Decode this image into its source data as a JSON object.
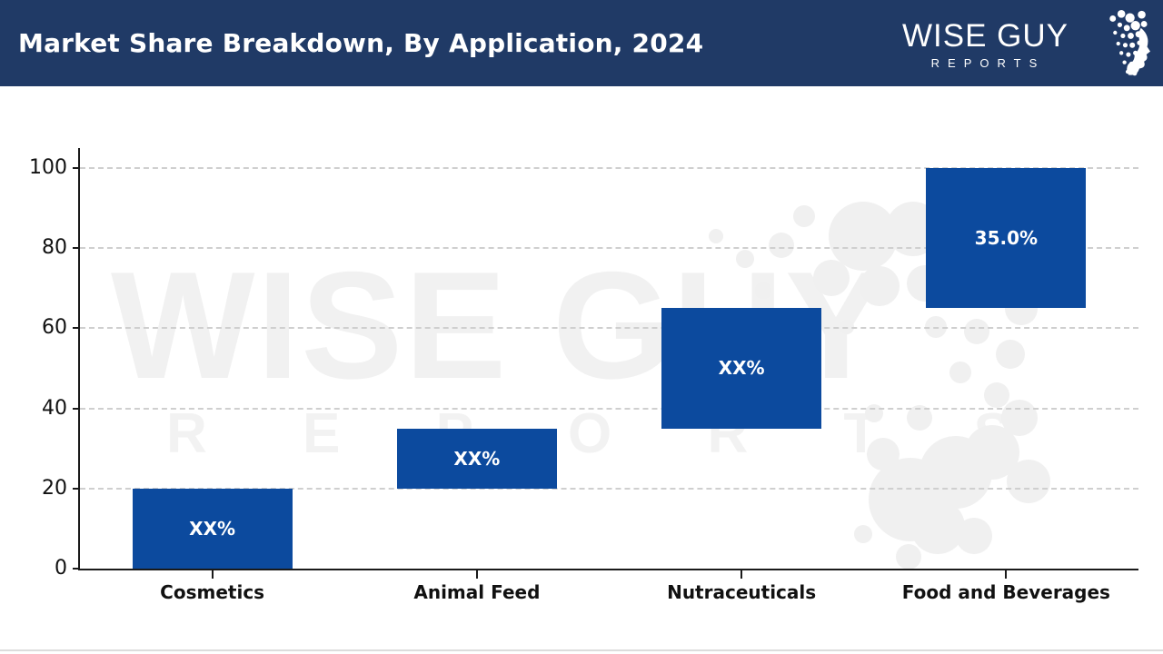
{
  "header": {
    "title": "Market Share Breakdown, By Application, 2024",
    "logo": {
      "line1": "WISE GUY",
      "line2": "REPORTS"
    }
  },
  "watermark": {
    "line1": "WISE GUY",
    "line2": "R E P O R T S"
  },
  "colors": {
    "header_bg": "#203a66",
    "bar": "#0c4a9e",
    "bar_label": "#ffffff",
    "gridline": "#cfcfcf",
    "axis": "#1a1a1a",
    "watermark": "#f1f1f1"
  },
  "chart_data": {
    "type": "bar",
    "subtype": "floating-waterfall",
    "title": "Market Share Breakdown, By Application, 2024",
    "categories": [
      "Cosmetics",
      "Animal Feed",
      "Nutraceuticals",
      "Food and Beverages"
    ],
    "segments": [
      {
        "category": "Cosmetics",
        "start": 0,
        "end": 20,
        "value": 20,
        "label": "XX%"
      },
      {
        "category": "Animal Feed",
        "start": 20,
        "end": 35,
        "value": 15,
        "label": "XX%"
      },
      {
        "category": "Nutraceuticals",
        "start": 35,
        "end": 65,
        "value": 30,
        "label": "XX%"
      },
      {
        "category": "Food and Beverages",
        "start": 65,
        "end": 100,
        "value": 35,
        "label": "35.0%"
      }
    ],
    "yticks": [
      0,
      20,
      40,
      60,
      80,
      100
    ],
    "ylim": [
      0,
      105
    ],
    "xlabel": "",
    "ylabel": "",
    "grid": "horizontal-dashed",
    "legend": "none",
    "bar_color": "#0c4a9e",
    "bar_label_color": "#ffffff"
  }
}
